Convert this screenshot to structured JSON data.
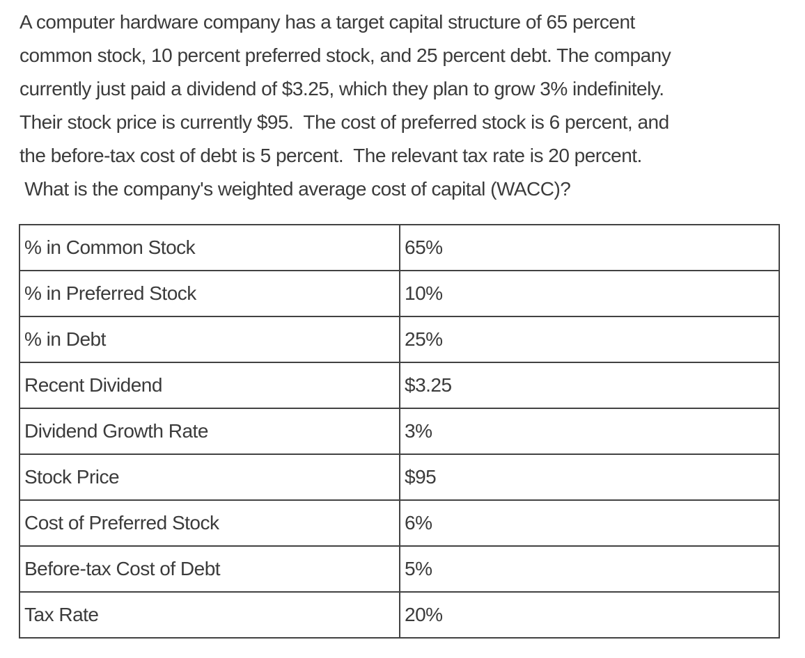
{
  "intro": {
    "lines": [
      "A computer hardware company has a target capital structure of 65 percent",
      "common stock, 10 percent preferred stock, and 25 percent debt. The company",
      "currently just paid a dividend of $3.25, which they plan to grow 3% indefinitely.",
      "Their stock price is currently $95.  The cost of preferred stock is 6 percent, and",
      "the before-tax cost of debt is 5 percent.  The relevant tax rate is 20 percent.",
      " What is the company's weighted average cost of capital (WACC)?"
    ]
  },
  "table": {
    "rows": [
      {
        "label": "% in Common Stock",
        "value": "65%"
      },
      {
        "label": "% in Preferred Stock",
        "value": "10%"
      },
      {
        "label": "% in Debt",
        "value": "25%"
      },
      {
        "label": "Recent Dividend",
        "value": "$3.25"
      },
      {
        "label": "Dividend Growth Rate",
        "value": "3%"
      },
      {
        "label": "Stock Price",
        "value": "$95"
      },
      {
        "label": "Cost of Preferred Stock",
        "value": "6%"
      },
      {
        "label": "Before-tax Cost of Debt",
        "value": "5%"
      },
      {
        "label": "Tax Rate",
        "value": "20%"
      }
    ]
  },
  "colors": {
    "text": "#3b3b3b",
    "table_border": "#424242",
    "background": "#ffffff"
  }
}
